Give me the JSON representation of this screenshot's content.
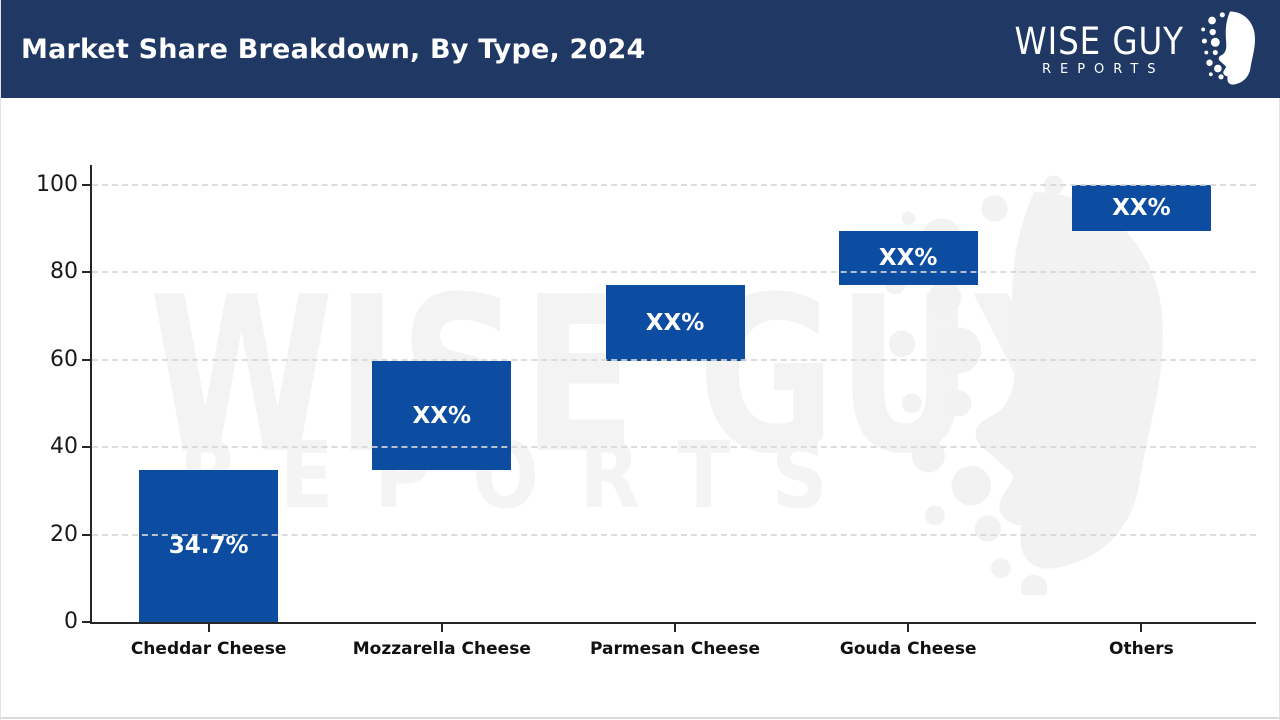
{
  "header": {
    "title": "Market Share Breakdown, By Type, 2024",
    "brand": {
      "line1": "WISE GUY",
      "line2": "REPORTS"
    }
  },
  "watermark": {
    "line1": "WISE GUY",
    "line2": "REPORTS"
  },
  "colors": {
    "header_bg": "#1f3864",
    "bar": "#0d4da1",
    "axis": "#262626",
    "grid": "#d6d6d6",
    "bar_label": "#ffffff",
    "watermark": "#f3f3f3"
  },
  "chart_data": {
    "type": "bar",
    "subtype": "waterfall",
    "title": "Market Share Breakdown, By Type, 2024",
    "categories": [
      "Cheddar Cheese",
      "Mozzarella Cheese",
      "Parmesan Cheese",
      "Gouda Cheese",
      "Others"
    ],
    "bars": [
      {
        "category": "Cheddar Cheese",
        "start": 0,
        "end": 34.7,
        "label": "34.7%"
      },
      {
        "category": "Mozzarella Cheese",
        "start": 34.7,
        "end": 59.7,
        "label": "XX%"
      },
      {
        "category": "Parmesan Cheese",
        "start": 59.7,
        "end": 77.2,
        "label": "XX%"
      },
      {
        "category": "Gouda Cheese",
        "start": 77.2,
        "end": 89.4,
        "label": "XX%"
      },
      {
        "category": "Others",
        "start": 89.4,
        "end": 100,
        "label": "XX%"
      }
    ],
    "value_suffix": "%",
    "ylim": [
      0,
      105
    ],
    "yticks": [
      0,
      20,
      40,
      60,
      80,
      100
    ],
    "xlabel": "",
    "ylabel": "",
    "grid": true,
    "legend": false
  }
}
